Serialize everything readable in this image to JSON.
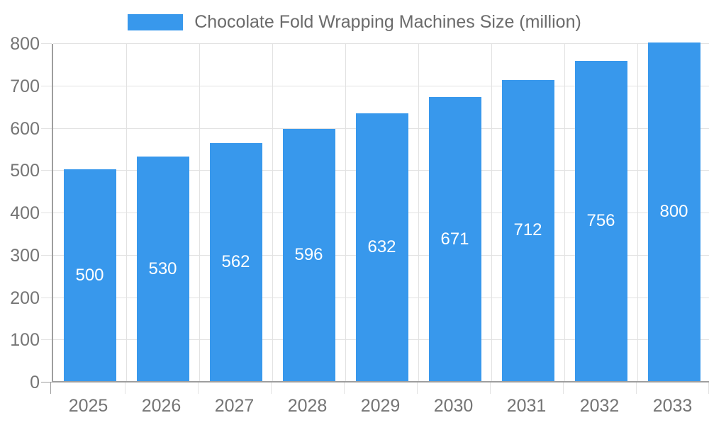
{
  "chart_data": {
    "type": "bar",
    "title": "Chocolate Fold Wrapping Machines Size (million)",
    "categories": [
      "2025",
      "2026",
      "2027",
      "2028",
      "2029",
      "2030",
      "2031",
      "2032",
      "2033"
    ],
    "values": [
      500,
      530,
      562,
      596,
      632,
      671,
      712,
      756,
      800
    ],
    "series_name": "Chocolate Fold Wrapping Machines Size (million)",
    "xlabel": "",
    "ylabel": "",
    "ylim": [
      0,
      800
    ],
    "ytick_step": 100,
    "ytick_labels": [
      "0",
      "100",
      "200",
      "300",
      "400",
      "500",
      "600",
      "700",
      "800"
    ],
    "grid": true,
    "legend_position": "top",
    "data_labels_visible": true,
    "colors": {
      "bar": "#3898EC",
      "bar_label": "#ffffff",
      "axis_line": "#9e9e9e",
      "gridline": "#e2e2e2",
      "tick_label": "#757575",
      "legend_text": "#6b6b6b",
      "background": "#ffffff"
    }
  }
}
